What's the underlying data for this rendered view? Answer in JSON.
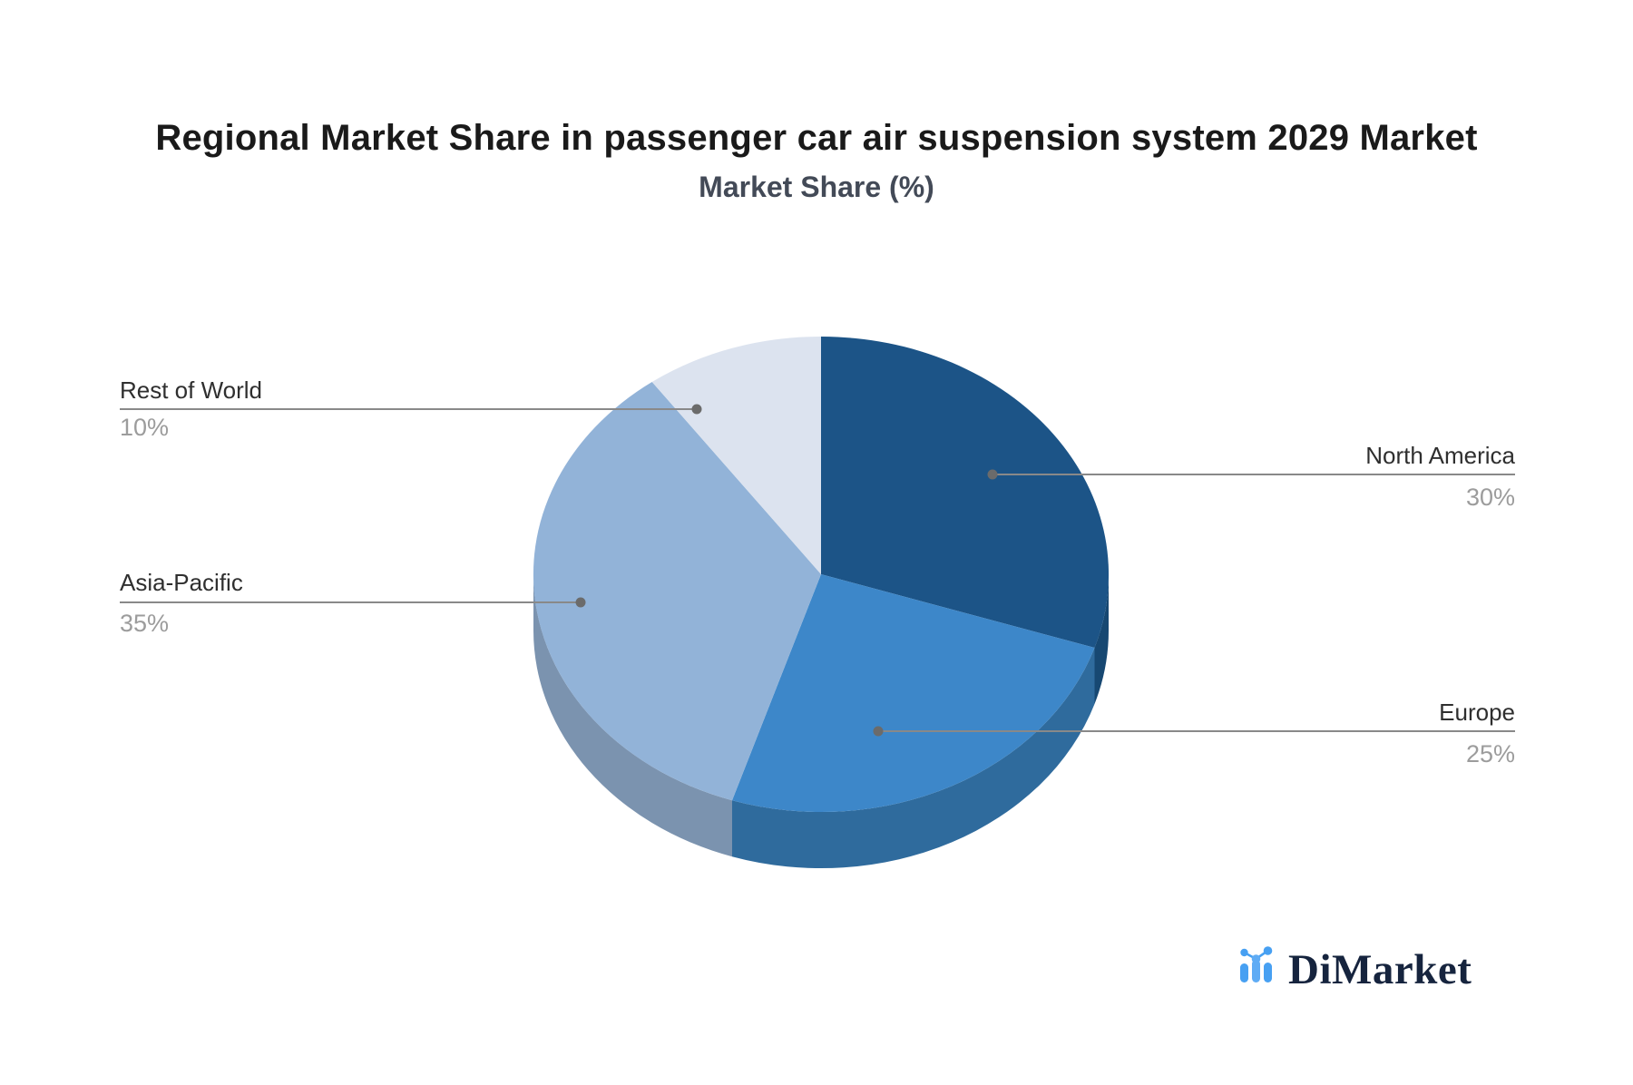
{
  "chart_data": {
    "type": "pie",
    "style": "3d",
    "title": "Regional Market Share in passenger car air suspension system 2029 Market",
    "subtitle": "Market Share (%)",
    "unit": "%",
    "labels": [
      "North America",
      "Europe",
      "Asia-Pacific",
      "Rest of World"
    ],
    "values": [
      30,
      25,
      35,
      10
    ],
    "display_values": [
      "30%",
      "25%",
      "35%",
      "10%"
    ],
    "colors": [
      "#1C5487",
      "#3D87C9",
      "#92B3D8",
      "#DCE3EF"
    ],
    "side_colors": [
      "#174872",
      "#2F6B9D",
      "#7B93AF",
      "#B8C3D6"
    ],
    "start_angle_deg": 0,
    "direction": "clockwise",
    "legend_position": "callout-labels"
  },
  "logo": {
    "text": "DiMarket",
    "icon": "bar-chart-icon"
  },
  "colors": {
    "background": "#FFFFFF",
    "title_text": "#1A1A1A",
    "subtitle_text": "#434A57",
    "label_text": "#2F2F2F",
    "pct_text": "#9C9C9C",
    "leader_line": "#898989",
    "leader_dot": "#6B6B6B",
    "logo_text": "#16243E",
    "logo_blue": "#47A0F2",
    "logo_blue_light": "#5FACF5"
  }
}
